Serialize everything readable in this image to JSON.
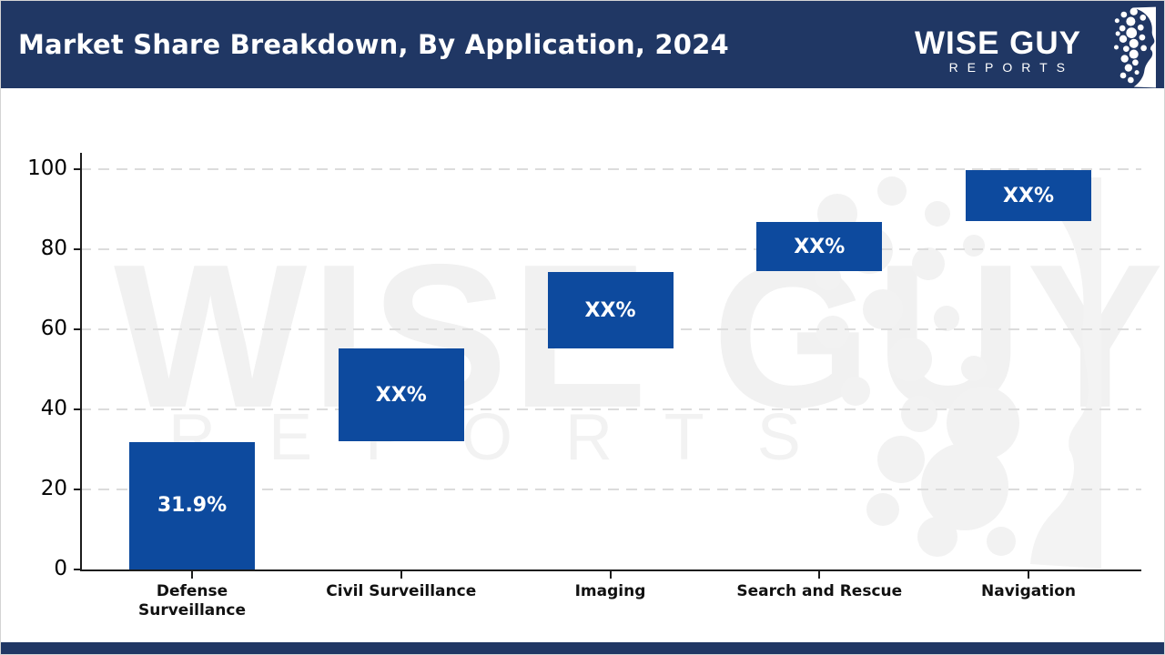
{
  "header": {
    "title": "Market Share Breakdown, By Application, 2024",
    "logo": {
      "line1": "WISE GUY",
      "line2": "REPORTS"
    }
  },
  "watermark": {
    "line1": "WISE GUY",
    "line2": "REPORTS"
  },
  "chart_data": {
    "type": "bar",
    "subtype": "waterfall",
    "title": "Market Share Breakdown, By Application, 2024",
    "categories": [
      "Defense Surveillance",
      "Civil Surveillance",
      "Imaging",
      "Search and Rescue",
      "Navigation"
    ],
    "tick_labels": [
      "Defense\nSurveillance",
      "Civil Surveillance",
      "Imaging",
      "Search and Rescue",
      "Navigation"
    ],
    "series": [
      {
        "name": "Market Share (%)",
        "segments": [
          {
            "start": 0,
            "end": 31.9
          },
          {
            "start": 32,
            "end": 55.2
          },
          {
            "start": 55.2,
            "end": 74.3
          },
          {
            "start": 74.5,
            "end": 86.8
          },
          {
            "start": 87,
            "end": 99.8
          }
        ]
      }
    ],
    "bar_labels": [
      "31.9%",
      "XX%",
      "XX%",
      "XX%",
      "XX%"
    ],
    "xlabel": "",
    "ylabel": "",
    "ylim": [
      0,
      104
    ],
    "yticks": [
      0,
      20,
      40,
      60,
      80,
      100
    ],
    "grid": "horizontal-dashed",
    "legend": "none",
    "colors": {
      "bar": "#0d4a9e",
      "bar_label": "#ffffff",
      "axis": "#1c1c1c",
      "grid": "#dcdcdc",
      "header_bg": "#203764",
      "footer_bg": "#203764",
      "title_text": "#ffffff",
      "watermark": "#f1f1f1"
    }
  }
}
